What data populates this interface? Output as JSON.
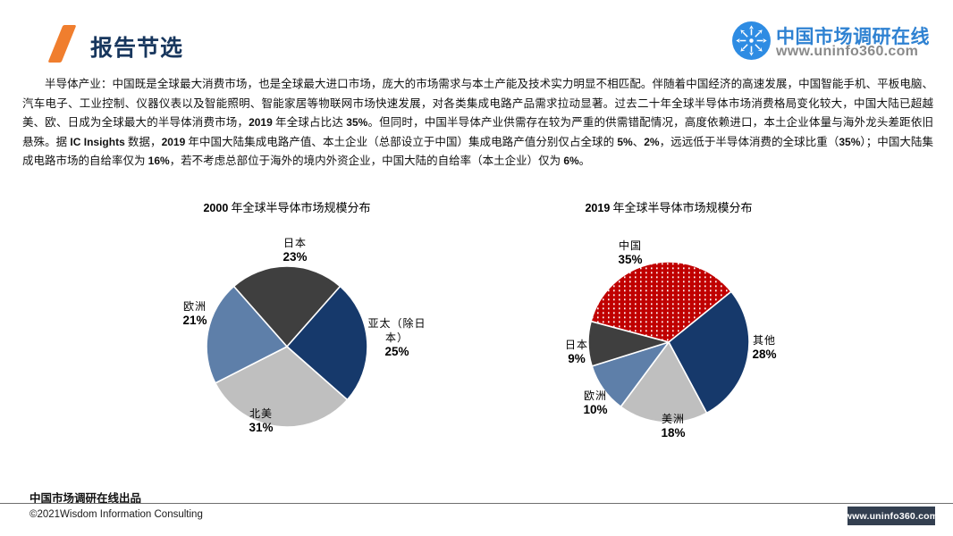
{
  "header": {
    "title": "报告节选",
    "logo_name": "中国市场调研在线",
    "logo_url": "www.uninfo360.com"
  },
  "paragraph": {
    "segments": [
      {
        "bold": false,
        "text": "半导体产业：中国既是全球最大消费市场，也是全球最大进口市场，庞大的市场需求与本土产能及技术实力明显不相匹配。伴随着中国经济的高速发展，中国智能手机、平板电脑、汽车电子、工业控制、仪器仪表以及智能照明、智能家居等物联网市场快速发展，对各类集成电路产品需求拉动显著。过去二十年全球半导体市场消费格局变化较大，中国大陆已超越美、欧、日成为全球最大的半导体消费市场，"
      },
      {
        "bold": true,
        "text": "2019"
      },
      {
        "bold": false,
        "text": " 年全球占比达 "
      },
      {
        "bold": true,
        "text": "35%"
      },
      {
        "bold": false,
        "text": "。但同时，中国半导体产业供需存在较为严重的供需错配情况，高度依赖进口，本土企业体量与海外龙头差距依旧悬殊。据 "
      },
      {
        "bold": true,
        "text": "IC Insights"
      },
      {
        "bold": false,
        "text": " 数据，"
      },
      {
        "bold": true,
        "text": "2019"
      },
      {
        "bold": false,
        "text": " 年中国大陆集成电路产值、本土企业（总部设立于中国）集成电路产值分别仅占全球的 "
      },
      {
        "bold": true,
        "text": "5%"
      },
      {
        "bold": false,
        "text": "、"
      },
      {
        "bold": true,
        "text": "2%"
      },
      {
        "bold": false,
        "text": "，远远低于半导体消费的全球比重（"
      },
      {
        "bold": true,
        "text": "35%"
      },
      {
        "bold": false,
        "text": "）；中国大陆集成电路市场的自给率仅为 "
      },
      {
        "bold": true,
        "text": "16%"
      },
      {
        "bold": false,
        "text": "，若不考虑总部位于海外的境内外资企业，中国大陆的自给率（本土企业）仅为 "
      },
      {
        "bold": true,
        "text": "6%"
      },
      {
        "bold": false,
        "text": "。"
      }
    ]
  },
  "chart_data": [
    {
      "type": "pie",
      "title": {
        "year": "2000",
        "rest": " 年全球半导体市场规模分布"
      },
      "start_angle": -41.4,
      "labels_position": "outside",
      "legend": "none",
      "slices": [
        {
          "label": "日本",
          "value": 23,
          "pct": "23%",
          "color": "#3F3F3F"
        },
        {
          "label": "亚太（除日本）",
          "value": 25,
          "pct": "25%",
          "color": "#16396B"
        },
        {
          "label": "北美",
          "value": 31,
          "pct": "31%",
          "color": "#BFBFBF"
        },
        {
          "label": "欧洲",
          "value": 21,
          "pct": "21%",
          "color": "#5E7FA9"
        }
      ]
    },
    {
      "type": "pie",
      "title": {
        "year": "2019",
        "rest": " 年全球半导体市场规模分布"
      },
      "start_angle": -75,
      "labels_position": "outside",
      "legend": "none",
      "slices": [
        {
          "label": "中国",
          "value": 35,
          "pct": "35%",
          "color": "#C00000",
          "pattern": "white-dots"
        },
        {
          "label": "其他",
          "value": 28,
          "pct": "28%",
          "color": "#16396B"
        },
        {
          "label": "美洲",
          "value": 18,
          "pct": "18%",
          "color": "#BFBFBF"
        },
        {
          "label": "欧洲",
          "value": 10,
          "pct": "10%",
          "color": "#5E7FA9"
        },
        {
          "label": "日本",
          "value": 9,
          "pct": "9%",
          "color": "#3F3F3F"
        }
      ]
    }
  ],
  "footer": {
    "produced_by": "中国市场调研在线出品",
    "copyright": "©2021Wisdom Information Consulting",
    "url_badge": "www.uninfo360.com"
  },
  "colors": {
    "accent_orange": "#F07E2E",
    "title_navy": "#17365D",
    "logo_blue": "#2E8CE3",
    "badge_bg": "#333F50"
  }
}
